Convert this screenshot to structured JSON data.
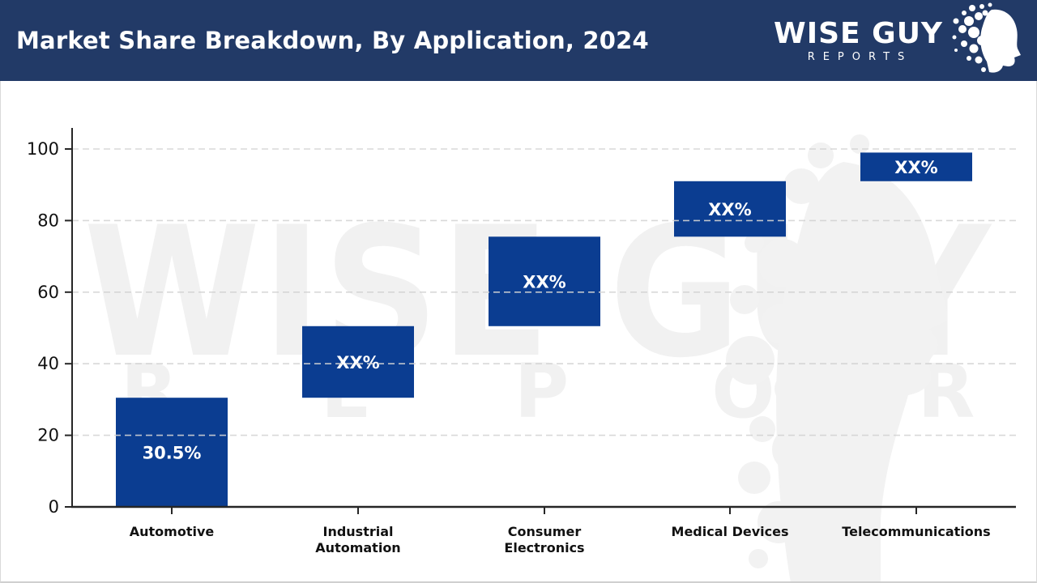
{
  "header": {
    "title": "Market Share Breakdown, By Application, 2024",
    "logo": {
      "line1": "WISE GUY",
      "line2": "REPORTS"
    }
  },
  "watermark": {
    "line1": "WISE GUY",
    "line2": "R E P O R T S"
  },
  "chart_data": {
    "type": "bar",
    "subtype": "waterfall-floating-bars",
    "title": "Market Share Breakdown, By Application, 2024",
    "categories": [
      "Automotive",
      "Industrial\nAutomation",
      "Consumer\nElectronics",
      "Medical Devices",
      "Telecommunications"
    ],
    "segments": [
      {
        "category": "Automotive",
        "start": 0,
        "end": 30.5,
        "label": "30.5%"
      },
      {
        "category": "Industrial Automation",
        "start": 30.5,
        "end": 50.5,
        "label": "XX%"
      },
      {
        "category": "Consumer Electronics",
        "start": 50.5,
        "end": 75.5,
        "label": "XX%"
      },
      {
        "category": "Medical Devices",
        "start": 75.5,
        "end": 91,
        "label": "XX%"
      },
      {
        "category": "Telecommunications",
        "start": 91,
        "end": 99,
        "label": "XX%"
      }
    ],
    "yticks": [
      0,
      20,
      40,
      60,
      80,
      100
    ],
    "ylim": [
      0,
      105
    ],
    "xlabel": "",
    "ylabel": "",
    "grid": "horizontal-dashed",
    "legend": "none",
    "bar_color": "#0b3d91",
    "bar_label_color": "#ffffff",
    "axis_color": "#262626",
    "grid_color": "#d4d4d4",
    "tick_label_color": "#111111"
  }
}
